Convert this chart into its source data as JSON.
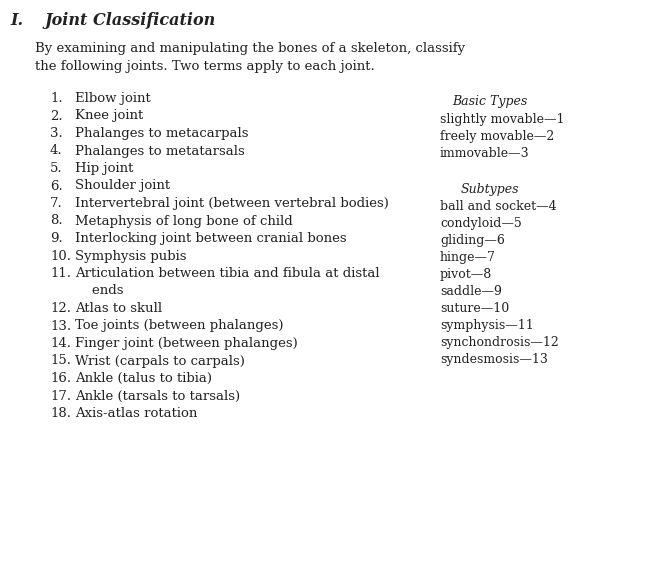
{
  "title_roman": "I.",
  "title_text": "Joint Classification",
  "subtitle_line1": "By examining and manipulating the bones of a skeleton, classify",
  "subtitle_line2": "the following joints. Two terms apply to each joint.",
  "joints_left": [
    {
      "num": "1.",
      "text": "Elbow joint"
    },
    {
      "num": "2.",
      "text": "Knee joint"
    },
    {
      "num": "3.",
      "text": "Phalanges to metacarpals"
    },
    {
      "num": "4.",
      "text": "Phalanges to metatarsals"
    },
    {
      "num": "5.",
      "text": "Hip joint"
    },
    {
      "num": "6.",
      "text": "Shoulder joint"
    },
    {
      "num": "7.",
      "text": "Intervertebral joint (between vertebral bodies)"
    },
    {
      "num": "8.",
      "text": "Metaphysis of long bone of child"
    },
    {
      "num": "9.",
      "text": "Interlocking joint between cranial bones"
    },
    {
      "num": "10.",
      "text": "Symphysis pubis"
    },
    {
      "num": "11.",
      "text": "Articulation between tibia and fibula at distal"
    },
    {
      "num": "",
      "text": "    ends"
    },
    {
      "num": "12.",
      "text": "Atlas to skull"
    },
    {
      "num": "13.",
      "text": "Toe joints (between phalanges)"
    },
    {
      "num": "14.",
      "text": "Finger joint (between phalanges)"
    },
    {
      "num": "15.",
      "text": "Wrist (carpals to carpals)"
    },
    {
      "num": "16.",
      "text": "Ankle (talus to tibia)"
    },
    {
      "num": "17.",
      "text": "Ankle (tarsals to tarsals)"
    },
    {
      "num": "18.",
      "text": "Axis-atlas rotation"
    }
  ],
  "basic_types_header": "Basic Types",
  "basic_types": [
    "slightly movable—1",
    "freely movable—2",
    "immovable—3"
  ],
  "subtypes_header": "Subtypes",
  "subtypes": [
    "ball and socket—4",
    "condyloid—5",
    "gliding—6",
    "hinge—7",
    "pivot—8",
    "saddle—9",
    "suture—10",
    "symphysis—11",
    "synchondrosis—12",
    "syndesmosis—13"
  ],
  "bg_color": "#ffffff",
  "text_color": "#222222",
  "title_fontsize": 11.5,
  "body_fontsize": 9.5,
  "sidebar_fontsize": 9.0
}
